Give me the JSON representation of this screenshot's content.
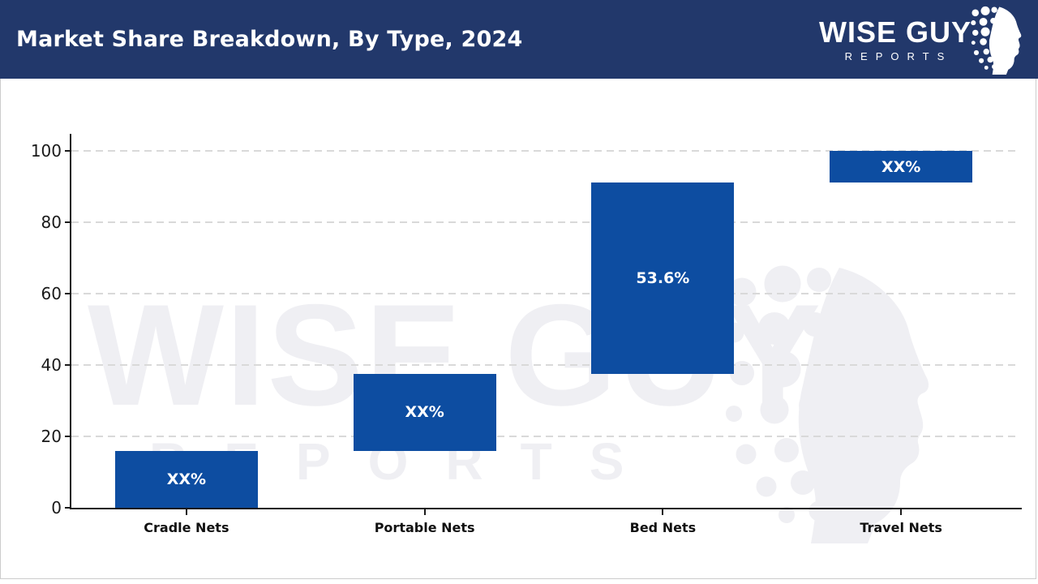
{
  "header": {
    "title": "Market Share Breakdown, By Type, 2024",
    "brand": {
      "line1": "WISE GUY",
      "line2": "REPORTS"
    }
  },
  "watermark": {
    "line1": "WISE GUY",
    "line2": "REPORTS"
  },
  "colors": {
    "header_bg": "#22386b",
    "bar": "#0d4da1",
    "grid": "#d9d9d9",
    "axis": "#1a1a1a",
    "bar_label": "#ffffff",
    "watermark": "#efeff3"
  },
  "chart_data": {
    "type": "bar",
    "subtype": "floating-waterfall",
    "title": "Market Share Breakdown, By Type, 2024",
    "xlabel": "",
    "ylabel": "",
    "categories": [
      "Cradle Nets",
      "Portable Nets",
      "Bed Nets",
      "Travel Nets"
    ],
    "bars": [
      {
        "category": "Cradle Nets",
        "label": "XX%",
        "start": 0,
        "end": 16
      },
      {
        "category": "Portable Nets",
        "label": "XX%",
        "start": 16,
        "end": 37.5
      },
      {
        "category": "Bed Nets",
        "label": "53.6%",
        "start": 37.5,
        "end": 91.1
      },
      {
        "category": "Travel Nets",
        "label": "XX%",
        "start": 91.1,
        "end": 100
      }
    ],
    "yticks": [
      0,
      20,
      40,
      60,
      80,
      100
    ],
    "ylim": [
      0,
      104.8
    ],
    "grid": "horizontal dashed",
    "legend": "none",
    "bar_color": "#0d4da1"
  }
}
